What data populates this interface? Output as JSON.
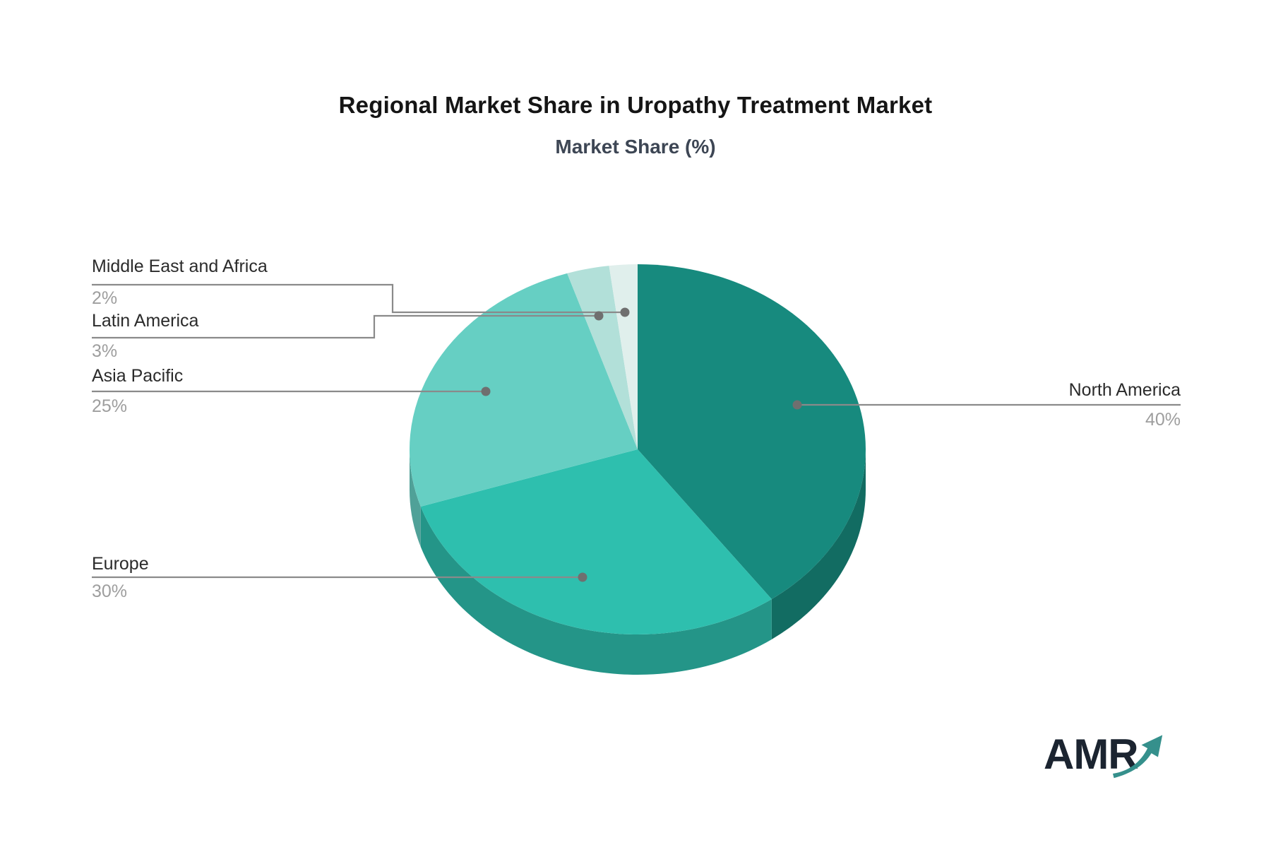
{
  "header": {
    "title": "Regional Market Share in Uropathy Treatment Market",
    "subtitle": "Market Share (%)"
  },
  "chart_data": {
    "type": "pie",
    "title": "Regional Market Share in Uropathy Treatment Market",
    "subtitle": "Market Share (%)",
    "unit": "%",
    "direction": "clockwise",
    "start_angle_deg": 0,
    "effect_3d": true,
    "series": [
      {
        "label": "North America",
        "value": 40,
        "pct_label": "40%",
        "color": "#178a7e"
      },
      {
        "label": "Europe",
        "value": 30,
        "pct_label": "30%",
        "color": "#2ebfae"
      },
      {
        "label": "Asia Pacific",
        "value": 25,
        "pct_label": "25%",
        "color": "#66cfc3"
      },
      {
        "label": "Latin America",
        "value": 3,
        "pct_label": "3%",
        "color": "#b2e0d9"
      },
      {
        "label": "Middle East and Africa",
        "value": 2,
        "pct_label": "2%",
        "color": "#e0efec"
      }
    ],
    "legend_position": "callout-labels",
    "colors": {
      "callout_line": "#8a8a8a",
      "callout_dot": "#6f6f6f",
      "label_name": "#2b2b2b",
      "label_pct": "#9e9e9e",
      "title": "#151515",
      "subtitle": "#3d4654"
    }
  },
  "logo": {
    "text": "AMR",
    "text_color": "#1b2430",
    "arrow_color": "#35908c"
  }
}
